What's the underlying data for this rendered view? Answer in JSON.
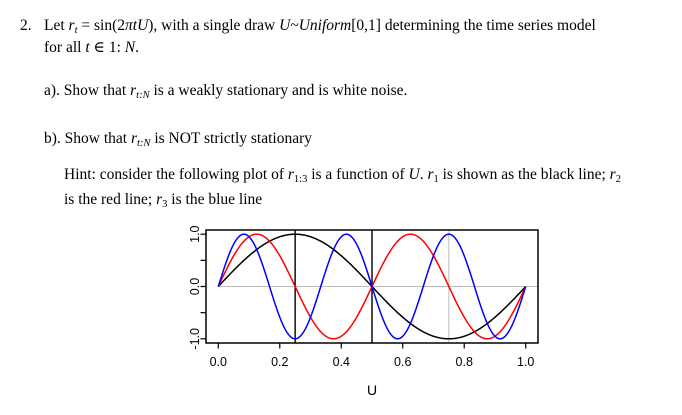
{
  "document": {
    "number_label": "2.",
    "line1": [
      {
        "t": "Let ",
        "s": "n"
      },
      {
        "t": "r",
        "s": "i"
      },
      {
        "t": "t",
        "s": "sub"
      },
      {
        "t": " = sin(2",
        "s": "n"
      },
      {
        "t": "πtU",
        "s": "i"
      },
      {
        "t": "), with a single draw ",
        "s": "n"
      },
      {
        "t": "U",
        "s": "i"
      },
      {
        "t": "~",
        "s": "n"
      },
      {
        "t": "Uniform",
        "s": "i"
      },
      {
        "t": "[0,1]",
        "s": "n"
      },
      {
        "t": " determining the time series model",
        "s": "n"
      }
    ],
    "line2": [
      {
        "t": "for all ",
        "s": "n"
      },
      {
        "t": "t",
        "s": "i"
      },
      {
        "t": " ∈ 1: ",
        "s": "n"
      },
      {
        "t": "N",
        "s": "i"
      },
      {
        "t": ".",
        "s": "n"
      }
    ],
    "part_a": [
      {
        "t": "a). Show that ",
        "s": "n"
      },
      {
        "t": "r",
        "s": "i"
      },
      {
        "t": "t:N",
        "s": "sub"
      },
      {
        "t": " is a weakly stationary and is white noise.",
        "s": "n"
      }
    ],
    "part_b": [
      {
        "t": "b). Show that ",
        "s": "n"
      },
      {
        "t": "r",
        "s": "i"
      },
      {
        "t": "t:N",
        "s": "sub"
      },
      {
        "t": " is NOT strictly stationary",
        "s": "n"
      }
    ],
    "hint_line1": [
      {
        "t": "Hint: consider the following plot of ",
        "s": "n"
      },
      {
        "t": "r",
        "s": "i"
      },
      {
        "t": "1:3",
        "s": "subn"
      },
      {
        "t": " is a function of ",
        "s": "n"
      },
      {
        "t": "U",
        "s": "i"
      },
      {
        "t": ". ",
        "s": "n"
      },
      {
        "t": "r",
        "s": "i"
      },
      {
        "t": "1",
        "s": "subn"
      },
      {
        "t": " is shown as the black line; ",
        "s": "n"
      },
      {
        "t": "r",
        "s": "i"
      },
      {
        "t": "2",
        "s": "subn"
      }
    ],
    "hint_line2": [
      {
        "t": "is the red line; ",
        "s": "n"
      },
      {
        "t": "r",
        "s": "i"
      },
      {
        "t": "3",
        "s": "subn"
      },
      {
        "t": " is the blue line",
        "s": "n"
      }
    ]
  },
  "chart_data": {
    "type": "line",
    "title": "",
    "xlabel": "U",
    "ylabel": "",
    "domain": [
      0,
      1
    ],
    "xlim": [
      -0.04,
      1.04
    ],
    "ylim": [
      -1.08,
      1.08
    ],
    "grid": false,
    "legend": "none",
    "x_ticks": [
      0.0,
      0.2,
      0.4,
      0.6,
      0.8,
      1.0
    ],
    "x_tick_labels": [
      "0.0",
      "0.2",
      "0.4",
      "0.6",
      "0.8",
      "1.0"
    ],
    "y_ticks": [
      -1.0,
      -0.5,
      0.0,
      0.5,
      1.0
    ],
    "y_tick_labels": [
      "-1.0",
      "",
      "0.0",
      "",
      "1.0"
    ],
    "x_samples": [
      0,
      0.05,
      0.1,
      0.15,
      0.2,
      0.25,
      0.3,
      0.35,
      0.4,
      0.45,
      0.5,
      0.55,
      0.6,
      0.65,
      0.7,
      0.75,
      0.8,
      0.85,
      0.9,
      0.95,
      1
    ],
    "series": [
      {
        "name": "r1",
        "legend": "black line",
        "color": "#000000",
        "formula": "sin(2*pi*U)",
        "cycles": 1,
        "y_samples": [
          0,
          0.309,
          0.588,
          0.809,
          0.951,
          1,
          0.951,
          0.809,
          0.588,
          0.309,
          0,
          -0.309,
          -0.588,
          -0.809,
          -0.951,
          -1,
          -0.951,
          -0.809,
          -0.588,
          -0.309,
          0
        ]
      },
      {
        "name": "r2",
        "legend": "red line",
        "color": "#ff0000",
        "formula": "sin(4*pi*U)",
        "cycles": 2,
        "y_samples": [
          0,
          0.588,
          0.951,
          0.951,
          0.588,
          0,
          -0.588,
          -0.951,
          -0.951,
          -0.588,
          0,
          0.588,
          0.951,
          0.951,
          0.588,
          0,
          -0.588,
          -0.951,
          -0.951,
          -0.588,
          0
        ]
      },
      {
        "name": "r3",
        "legend": "blue line",
        "color": "#0000ff",
        "formula": "sin(6*pi*U)",
        "cycles": 3,
        "y_samples": [
          0,
          0.809,
          0.951,
          0.309,
          -0.588,
          -1,
          -0.588,
          0.309,
          0.951,
          0.809,
          0,
          -0.809,
          -0.951,
          -0.309,
          0.588,
          1,
          0.588,
          -0.309,
          -0.951,
          -0.809,
          0
        ]
      }
    ],
    "reference_lines": {
      "vertical_black": [
        0.25,
        0.5
      ],
      "vertical_gray": [
        0.75
      ],
      "horizontal_gray": [
        0.0
      ],
      "black_color": "#000000",
      "gray_color": "#bebebe"
    }
  }
}
